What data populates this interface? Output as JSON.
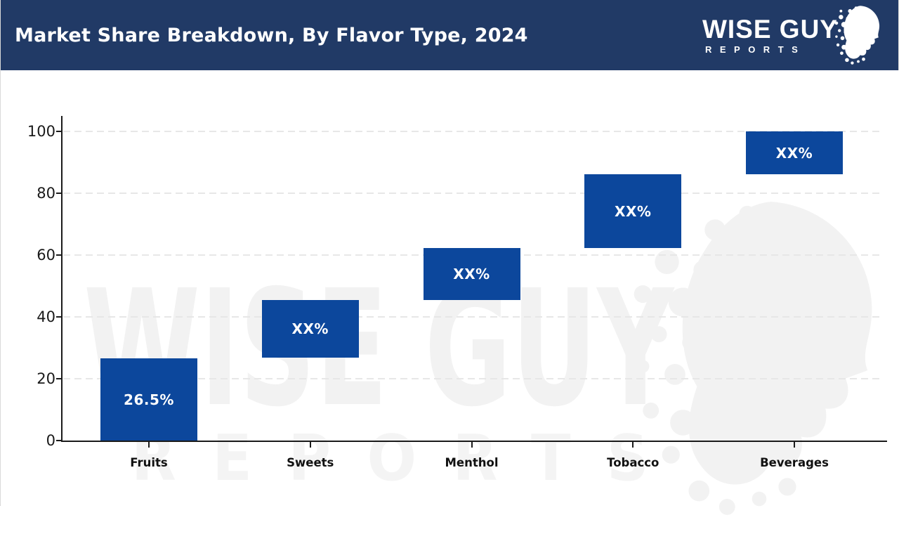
{
  "header": {
    "title": "Market Share Breakdown, By Flavor Type, 2024",
    "logo": {
      "line1": "WISE GUY",
      "line2": "REPORTS"
    }
  },
  "watermark": {
    "line1": "WISE GUY",
    "line2": "REPORTS"
  },
  "colors": {
    "header_bg": "#213a66",
    "bar": "#0c479c",
    "bar_label": "#ffffff",
    "grid": "#e7e7e7",
    "axis": "#1a1a1a",
    "watermark": "#f2f2f2"
  },
  "chart_data": {
    "type": "bar",
    "subtype": "waterfall",
    "title": "Market Share Breakdown, By Flavor Type, 2024",
    "categories": [
      "Fruits",
      "Sweets",
      "Menthol",
      "Tobacco",
      "Beverages"
    ],
    "segments": [
      {
        "category": "Fruits",
        "start": 0,
        "end": 26.5,
        "label": "26.5%"
      },
      {
        "category": "Sweets",
        "start": 26.8,
        "end": 45.5,
        "label": "XX%"
      },
      {
        "category": "Menthol",
        "start": 45.5,
        "end": 62.3,
        "label": "XX%"
      },
      {
        "category": "Tobacco",
        "start": 62.3,
        "end": 86.1,
        "label": "XX%"
      },
      {
        "category": "Beverages",
        "start": 86.1,
        "end": 100,
        "label": "XX%"
      }
    ],
    "yticks": [
      0,
      20,
      40,
      60,
      80,
      100
    ],
    "ylim": [
      0,
      105
    ],
    "xlabel": "",
    "ylabel": "",
    "grid": "horizontal-dashed",
    "legend": "none"
  }
}
